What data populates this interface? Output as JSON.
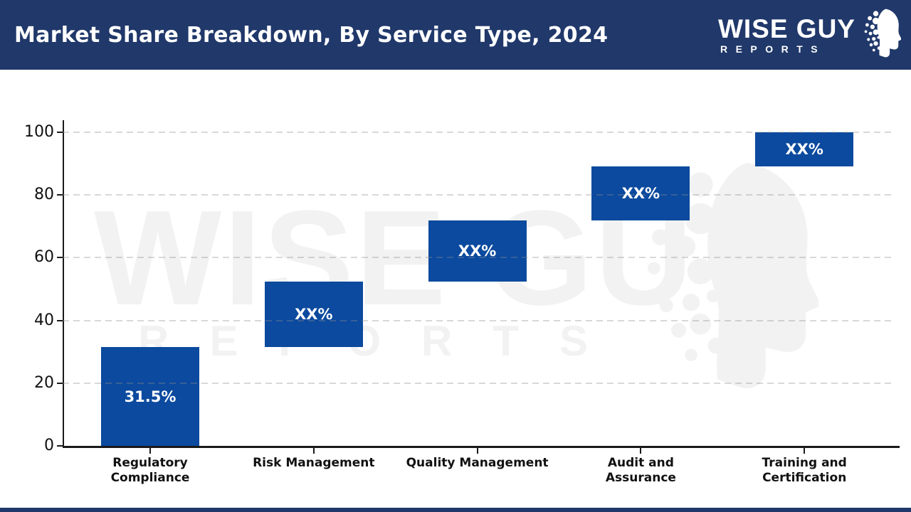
{
  "header": {
    "title": "Market Share Breakdown, By Service Type, 2024",
    "logo": {
      "wordmark": "WISE GUY",
      "subtitle": "REPORTS"
    }
  },
  "watermark": {
    "line1": "WISE GUY",
    "line2": "REPORTS"
  },
  "chart_data": {
    "type": "bar",
    "variant": "waterfall",
    "title": "Market Share Breakdown, By Service Type, 2024",
    "xlabel": "",
    "ylabel": "",
    "categories": [
      [
        "Regulatory",
        "Compliance"
      ],
      [
        "Risk Management"
      ],
      [
        "Quality Management"
      ],
      [
        "Audit and",
        "Assurance"
      ],
      [
        "Training and",
        "Certification"
      ]
    ],
    "segments": [
      {
        "category": "Regulatory Compliance",
        "start": 0,
        "end": 31.5,
        "label": "31.5%"
      },
      {
        "category": "Risk Management",
        "start": 31.5,
        "end": 52.3,
        "label": "XX%"
      },
      {
        "category": "Quality Management",
        "start": 52.3,
        "end": 71.8,
        "label": "XX%"
      },
      {
        "category": "Audit and Assurance",
        "start": 71.8,
        "end": 89.2,
        "label": "XX%"
      },
      {
        "category": "Training and Certification",
        "start": 89.2,
        "end": 100,
        "label": "XX%"
      }
    ],
    "yticks": [
      0,
      20,
      40,
      60,
      80,
      100
    ],
    "ylim": [
      0,
      103.5
    ],
    "grid": "horizontal-dashed",
    "legend": "none",
    "colors": {
      "bar": "#0b4a9e",
      "bar_label": "#ffffff",
      "header_bg": "#20386a",
      "watermark": "#f2f2f2",
      "axis": "#1a1a1a"
    }
  }
}
